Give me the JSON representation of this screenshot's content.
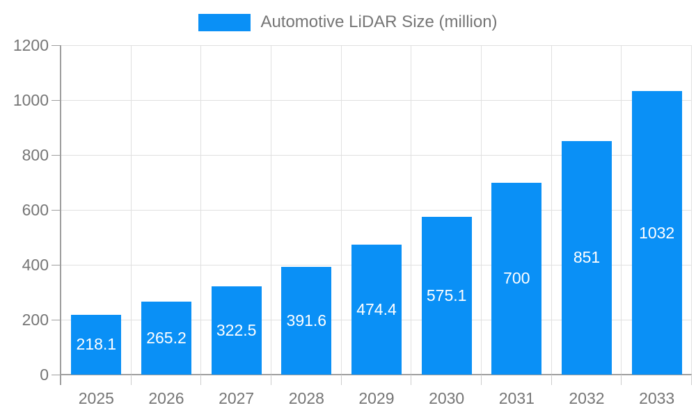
{
  "legend": {
    "label": "Automotive LiDAR Size (million)"
  },
  "colors": {
    "bar": "#0a90f6",
    "grid": "#e0e0e0",
    "axis": "#9e9e9e",
    "tick": "#cccccc",
    "text": "#757575",
    "value_text": "#ffffff",
    "background": "#ffffff"
  },
  "chart_data": {
    "type": "bar",
    "title": "Automotive LiDAR Size (million)",
    "series_name": "Automotive LiDAR Size (million)",
    "categories": [
      "2025",
      "2026",
      "2027",
      "2028",
      "2029",
      "2030",
      "2031",
      "2032",
      "2033"
    ],
    "values": [
      218.1,
      265.2,
      322.5,
      391.6,
      474.4,
      575.1,
      700,
      851,
      1032
    ],
    "value_labels": [
      "218.1",
      "265.2",
      "322.5",
      "391.6",
      "474.4",
      "575.1",
      "700",
      "851",
      "1032"
    ],
    "xlabel": "",
    "ylabel": "",
    "ylim": [
      0,
      1200
    ],
    "yticks": [
      0,
      200,
      400,
      600,
      800,
      1000,
      1200
    ],
    "grid": true,
    "legend_position": "top-center",
    "bar_label_position": "inside-center"
  }
}
